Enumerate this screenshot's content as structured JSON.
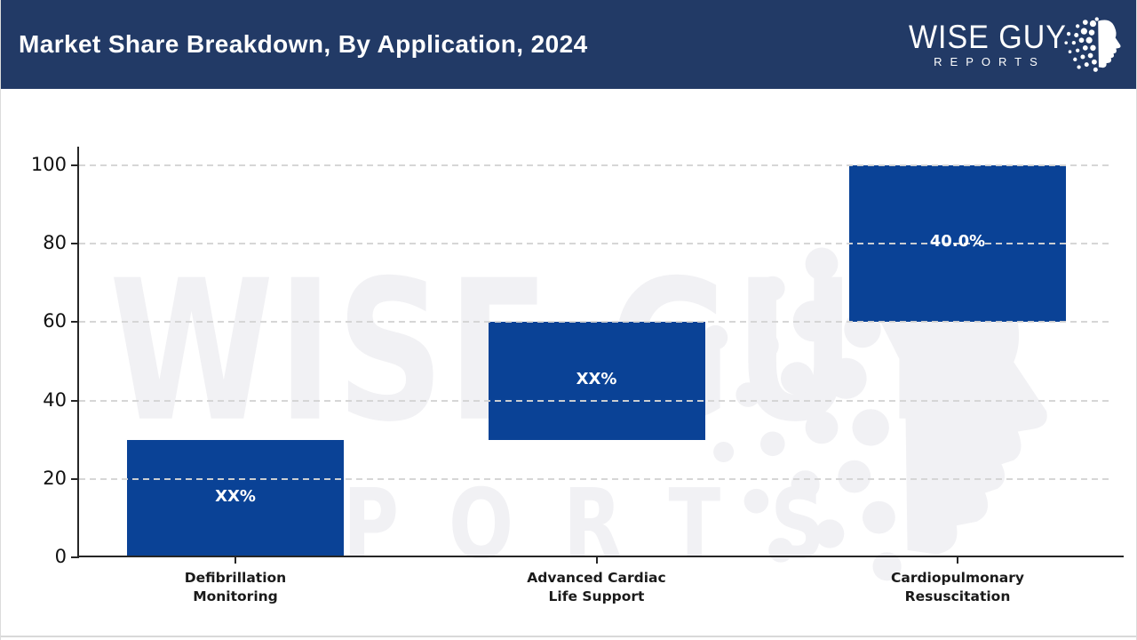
{
  "header": {
    "title": "Market Share Breakdown, By Application, 2024",
    "background_color": "#223a66",
    "logo": {
      "line1": "WISE GUY",
      "line2": "REPORTS",
      "icon": "wiseguy-dotted-face"
    }
  },
  "watermark": {
    "line1": "WISE GUY",
    "line2": "REPORTS",
    "icon": "wiseguy-dotted-face",
    "color": "#f1f1f4"
  },
  "chart_data": {
    "type": "bar",
    "variant": "floating-segment-waterfall",
    "title": "Market Share Breakdown, By Application, 2024",
    "categories": [
      "Defibrillation\nMonitoring",
      "Advanced Cardiac\nLife Support",
      "Cardiopulmonary\nResuscitation"
    ],
    "segments": [
      {
        "category": "Defibrillation Monitoring",
        "start": 0,
        "end": 30,
        "label": "XX%"
      },
      {
        "category": "Advanced Cardiac Life Support",
        "start": 30,
        "end": 60,
        "label": "XX%"
      },
      {
        "category": "Cardiopulmonary Resuscitation",
        "start": 60,
        "end": 100,
        "label": "40.0%"
      }
    ],
    "y_ticks": [
      0,
      20,
      40,
      60,
      80,
      100
    ],
    "ylim": [
      0,
      104
    ],
    "xlabel": "",
    "ylabel": "",
    "grid": "dashed-horizontal-over-bars",
    "legend": "none",
    "bar_color": "#0a4296",
    "bar_label_color": "#ffffff",
    "axis_color": "#262626",
    "grid_color": "#d4d4d4"
  }
}
